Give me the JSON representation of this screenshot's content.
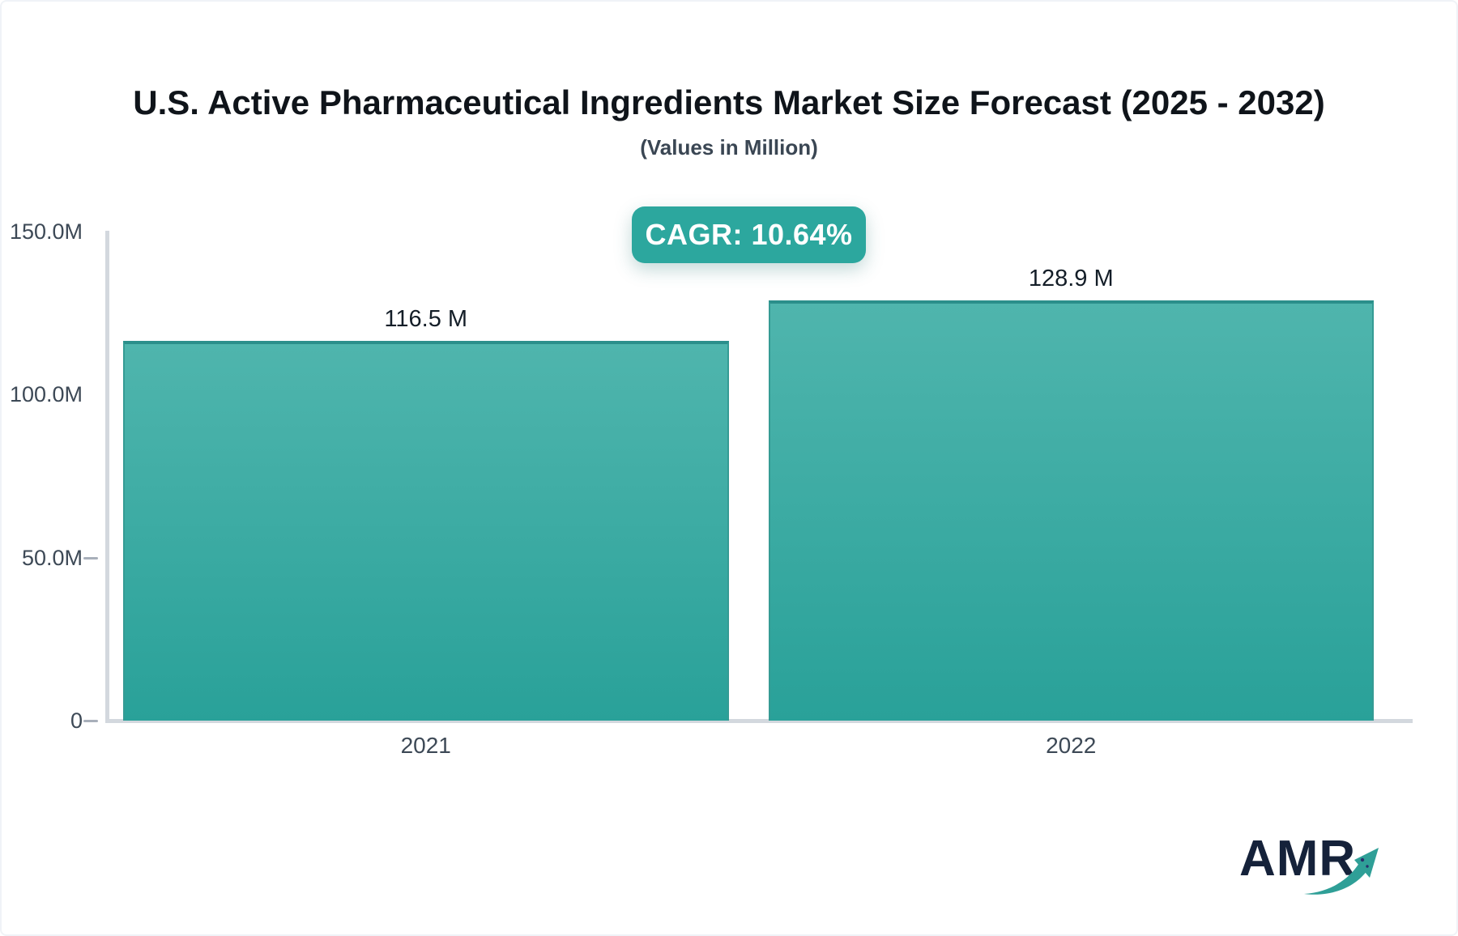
{
  "header": {},
  "badge": {
    "label": "CAGR: 10.64%"
  },
  "chart_data": {
    "type": "bar",
    "title": "U.S. Active Pharmaceutical Ingredients Market Size Forecast (2025 - 2032)",
    "subtitle": "(Values in Million)",
    "categories": [
      "2021",
      "2022"
    ],
    "values": [
      116.5,
      128.9
    ],
    "value_labels": [
      "116.5 M",
      "128.9 M"
    ],
    "cagr_annotation": "CAGR: 10.64%",
    "xlabel": "",
    "ylabel": "",
    "ylim": [
      0,
      150
    ],
    "yticks": [
      {
        "value": 150,
        "label": "150.0M",
        "tick": false
      },
      {
        "value": 100,
        "label": "100.0M",
        "tick": false
      },
      {
        "value": 50,
        "label": "50.0M",
        "tick": true
      },
      {
        "value": 0,
        "label": "0",
        "tick": true
      }
    ],
    "grid": false,
    "legend": false,
    "bar_colors": {
      "top": "#4fb5ad",
      "bottom": "#29a199",
      "border_top": "#2b8f8b",
      "border_side": "#359b94"
    }
  },
  "colors": {
    "accent_teal": "#2ca79e",
    "axis_line": "#d3d8de",
    "tick_mark": "#a8afba",
    "title_text": "#0f141a",
    "subtitle_text": "#3a4653",
    "axis_text": "#3d4956",
    "value_text": "#141e28",
    "logo_navy": "#15223a",
    "arrow_teal": "#2f9f97",
    "arrow_dots": "#26306b"
  },
  "logo": {
    "text": "AMR"
  }
}
